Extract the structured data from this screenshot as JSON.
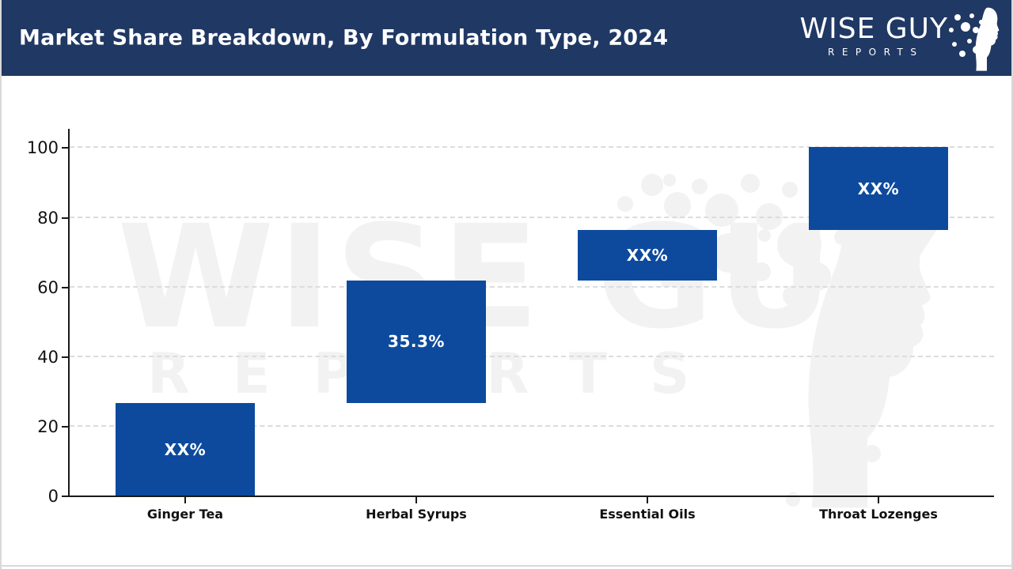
{
  "header": {
    "title": "Market Share Breakdown, By Formulation Type, 2024",
    "brand_line1": "WISE GUY",
    "brand_line2": "REPORTS",
    "bg_color": "#203864"
  },
  "watermark": {
    "line1": "WISE GUY",
    "line2": "REPORTS"
  },
  "chart_data": {
    "type": "bar",
    "subtype": "waterfall",
    "title": "Market Share Breakdown, By Formulation Type, 2024",
    "categories": [
      "Ginger Tea",
      "Herbal Syrups",
      "Essential Oils",
      "Throat Lozenges"
    ],
    "segments": [
      {
        "category": "Ginger Tea",
        "start": 0,
        "end": 26.5,
        "value": 26.5,
        "label": "XX%"
      },
      {
        "category": "Herbal Syrups",
        "start": 26.5,
        "end": 61.8,
        "value": 35.3,
        "label": "35.3%"
      },
      {
        "category": "Essential Oils",
        "start": 61.8,
        "end": 76.3,
        "value": 14.5,
        "label": "XX%"
      },
      {
        "category": "Throat Lozenges",
        "start": 76.3,
        "end": 100,
        "value": 23.7,
        "label": "XX%"
      }
    ],
    "xlabel": "",
    "ylabel": "",
    "yticks": [
      0,
      20,
      40,
      60,
      80,
      100
    ],
    "ylim": [
      0,
      105
    ],
    "grid": "horizontal-dashed",
    "legend": "none",
    "bar_color": "#0d4a9e",
    "bar_label_color": "#ffffff",
    "axis_color": "#1a1a1a",
    "grid_color": "#dcdcdc"
  }
}
